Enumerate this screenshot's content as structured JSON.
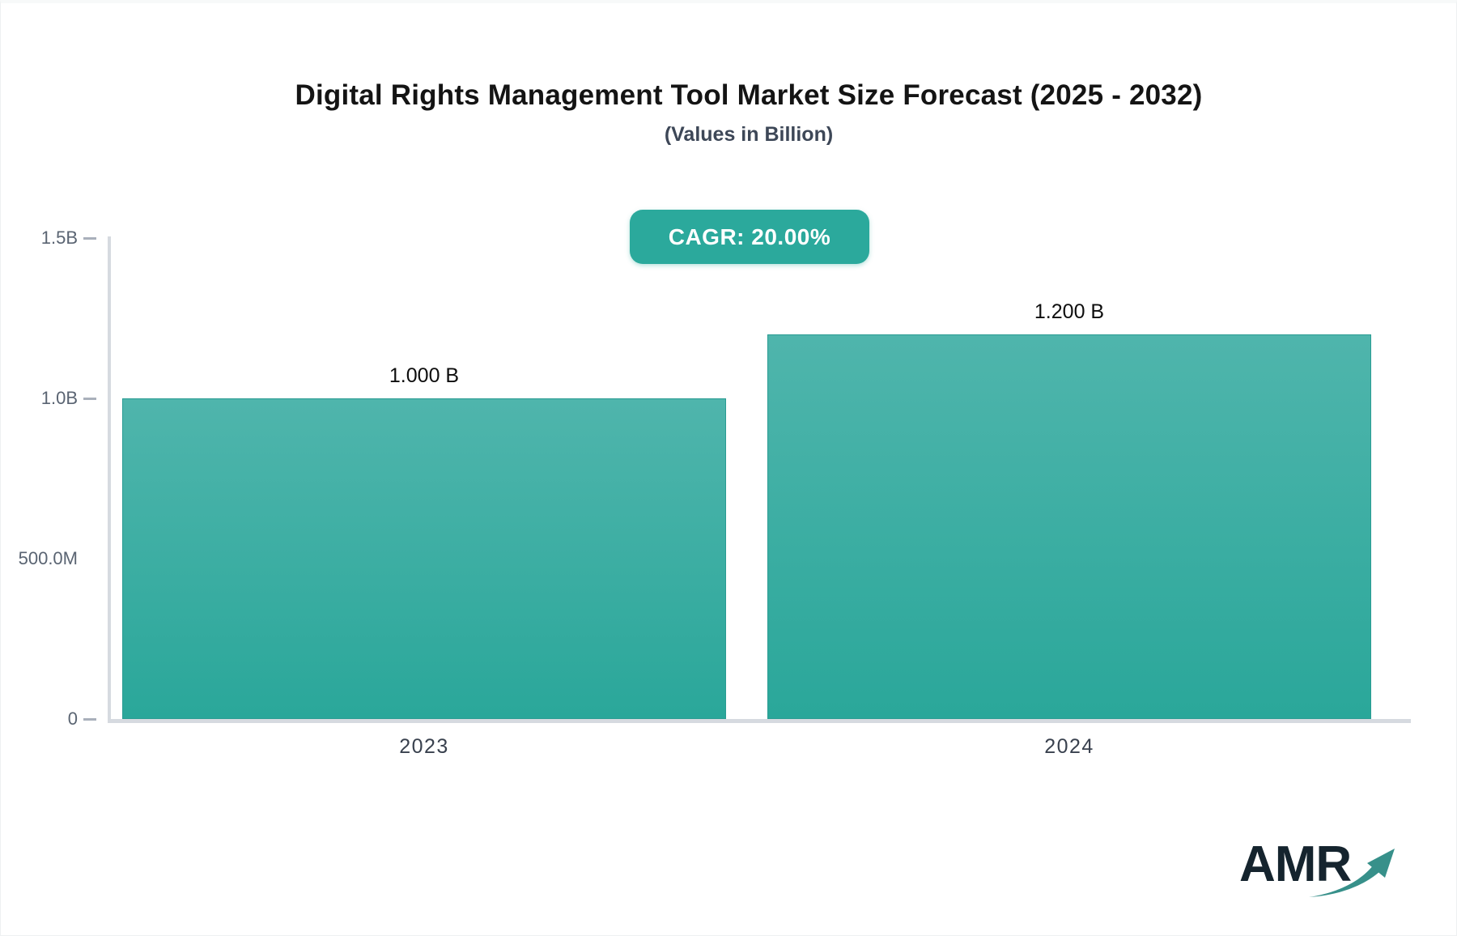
{
  "header": {
    "title": "Digital Rights Management Tool Market Size Forecast (2025 - 2032)",
    "subtitle": "(Values in Billion)",
    "cagr_label": "CAGR: 20.00%"
  },
  "logo": {
    "text": "AMR"
  },
  "colors": {
    "accent_teal": "#2ba99c",
    "bar_gradient_top": "#4fb5ac",
    "bar_gradient_bottom": "#2aa79a",
    "bar_border": "#2b9c93",
    "axis_line": "#d6dae0",
    "tick_mark": "#a9b0bb",
    "axis_label_text": "#5a6472",
    "category_label_text": "#39414e",
    "title_text": "#141414",
    "badge_text": "#ffffff",
    "logo_dark": "#15242e",
    "logo_arrow_teal": "#37908a"
  },
  "chart_data": {
    "type": "bar",
    "title": "Digital Rights Management Tool Market Size Forecast (2025 - 2032)",
    "subtitle": "(Values in Billion)",
    "cagr": "20.00%",
    "unit": "Billion",
    "categories": [
      "2023",
      "2024"
    ],
    "values": [
      1.0,
      1.2
    ],
    "value_labels": [
      "1.000 B",
      "1.200 B"
    ],
    "ylim": [
      0,
      1.5
    ],
    "y_ticks": [
      {
        "label": "1.5B",
        "value": 1.5,
        "dash": true
      },
      {
        "label": "1.0B",
        "value": 1.0,
        "dash": true
      },
      {
        "label": "500.0M",
        "value": 0.5,
        "dash": false
      },
      {
        "label": "0",
        "value": 0,
        "dash": true
      }
    ],
    "grid": false,
    "legend": false
  }
}
